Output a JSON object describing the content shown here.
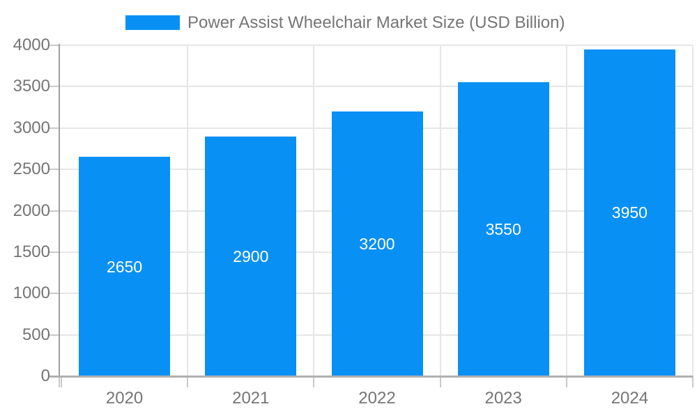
{
  "chart_data": {
    "type": "bar",
    "title": "Power Assist Wheelchair Market Size (USD Billion)",
    "categories": [
      "2020",
      "2021",
      "2022",
      "2023",
      "2024"
    ],
    "values": [
      2650,
      2900,
      3200,
      3550,
      3950
    ],
    "bar_value_labels": [
      "2650",
      "2900",
      "3200",
      "3550",
      "3950"
    ],
    "y_ticks": [
      0,
      500,
      1000,
      1500,
      2000,
      2500,
      3000,
      3500,
      4000
    ],
    "ylim": [
      0,
      4000
    ],
    "xlabel": "",
    "ylabel": "",
    "grid": true,
    "legend_position": "top",
    "legend_entries": [
      "Power Assist Wheelchair Market Size (USD Billion)"
    ],
    "colors": {
      "bar": "#0990f5",
      "bar_label_text": "#ffffff",
      "axis_text": "#757575",
      "title_text": "#757575",
      "gridline": "#e6e6e6",
      "x_axis_line": "#b0b0b0",
      "y_axis_line": "#9e9e9e",
      "tick": "#c9c9c9",
      "background": "#ffffff"
    }
  }
}
